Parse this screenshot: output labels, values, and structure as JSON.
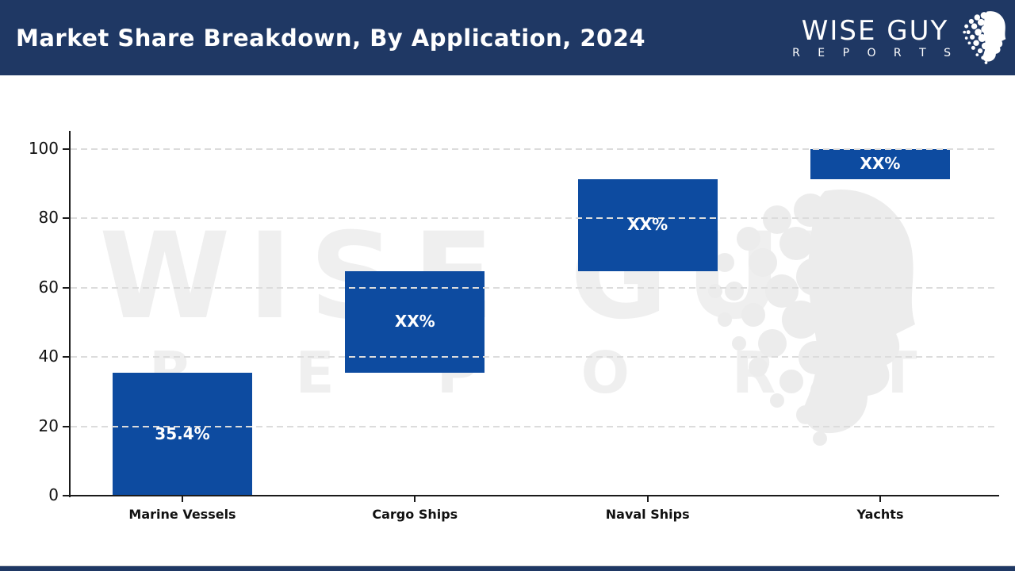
{
  "header": {
    "title": "Market Share Breakdown, By Application, 2024",
    "logo_line1": "WISE GUY",
    "logo_line2": "R E P O R T S"
  },
  "watermark": {
    "line1": "WISE GUY",
    "line2": "R E P O R T S"
  },
  "chart_data": {
    "type": "bar",
    "subtype": "floating-waterfall",
    "title": "Market Share Breakdown, By Application, 2024",
    "categories": [
      "Marine Vessels",
      "Cargo Ships",
      "Naval Ships",
      "Yachts"
    ],
    "series": [
      {
        "name": "Market Share (%)",
        "segments": [
          {
            "category": "Marine Vessels",
            "start": 0,
            "end": 35.4,
            "label": "35.4%"
          },
          {
            "category": "Cargo Ships",
            "start": 35.4,
            "end": 64.8,
            "label": "XX%"
          },
          {
            "category": "Naval Ships",
            "start": 64.8,
            "end": 91.2,
            "label": "XX%"
          },
          {
            "category": "Yachts",
            "start": 91.2,
            "end": 100,
            "label": "XX%"
          }
        ]
      }
    ],
    "ylim": [
      0,
      100
    ],
    "yticks": [
      "0",
      "20",
      "40",
      "60",
      "80",
      "100"
    ],
    "grid": "horizontal-dashed",
    "legend": "none",
    "colors": {
      "bar": "#0d4ba0",
      "bar_label": "#ffffff",
      "axis": "#1a1a1a",
      "grid": "#dcdcdc",
      "header_bg": "#1f3864",
      "watermark": "#efefef"
    }
  }
}
